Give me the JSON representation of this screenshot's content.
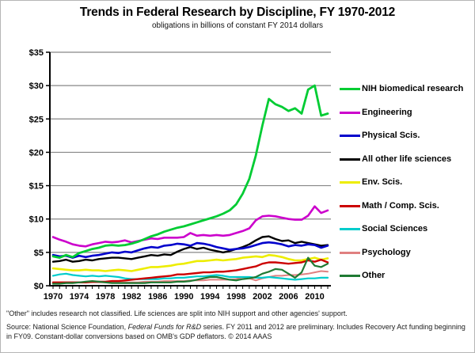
{
  "figure": {
    "title": "Trends in Federal Research by Discipline, FY 1970-2012",
    "subtitle": "obligations in billions of constant FY 2014 dollars"
  },
  "chart_data": {
    "type": "line",
    "title": "Trends in Federal Research by Discipline, FY 1970-2012",
    "subtitle": "obligations in billions of constant FY 2014 dollars",
    "xlabel": "",
    "ylabel": "",
    "grid": true,
    "legend_position": "right",
    "ylim": [
      0,
      35
    ],
    "yticks": [
      0,
      5,
      10,
      15,
      20,
      25,
      30,
      35
    ],
    "ytick_prefix": "$",
    "xticks_labeled": [
      1970,
      1974,
      1978,
      1982,
      1986,
      1990,
      1994,
      1998,
      2002,
      2006,
      2010
    ],
    "colors": {
      "grid": "#878787",
      "axis": "#000000"
    },
    "x": [
      1970,
      1971,
      1972,
      1973,
      1974,
      1975,
      1976,
      1977,
      1978,
      1979,
      1980,
      1981,
      1982,
      1983,
      1984,
      1985,
      1986,
      1987,
      1988,
      1989,
      1990,
      1991,
      1992,
      1993,
      1994,
      1995,
      1996,
      1997,
      1998,
      1999,
      2000,
      2001,
      2002,
      2003,
      2004,
      2005,
      2006,
      2007,
      2008,
      2009,
      2010,
      2011,
      2012
    ],
    "draw_order": [
      7,
      6,
      4,
      5,
      8,
      3,
      2,
      1,
      0
    ],
    "series": [
      {
        "name": "NIH biomedical research",
        "color": "#00CC33",
        "width": 2.8,
        "values": [
          4.4,
          4.2,
          4.6,
          4.3,
          4.9,
          5.2,
          5.5,
          5.7,
          6.0,
          6.1,
          6.0,
          6.1,
          6.3,
          6.6,
          7.0,
          7.4,
          7.7,
          8.1,
          8.4,
          8.7,
          8.9,
          9.2,
          9.5,
          9.8,
          10.1,
          10.4,
          10.8,
          11.3,
          12.2,
          13.8,
          16.0,
          19.5,
          24.0,
          28.0,
          27.2,
          26.8,
          26.2,
          26.6,
          25.8,
          29.4,
          30.0,
          25.5,
          25.8
        ]
      },
      {
        "name": "Engineering",
        "color": "#CC00CC",
        "width": 2.6,
        "values": [
          7.3,
          6.9,
          6.6,
          6.2,
          6.0,
          5.9,
          6.2,
          6.4,
          6.6,
          6.5,
          6.6,
          6.8,
          6.5,
          6.7,
          6.9,
          7.1,
          7.0,
          7.2,
          7.2,
          7.2,
          7.3,
          7.9,
          7.5,
          7.6,
          7.5,
          7.6,
          7.5,
          7.6,
          7.9,
          8.2,
          8.6,
          9.8,
          10.4,
          10.5,
          10.4,
          10.2,
          10.0,
          9.9,
          9.9,
          10.5,
          11.9,
          10.9,
          11.3
        ]
      },
      {
        "name": "Physical Scis.",
        "color": "#0000CC",
        "width": 2.6,
        "values": [
          4.6,
          4.4,
          4.5,
          4.2,
          4.5,
          4.3,
          4.5,
          4.6,
          4.8,
          5.0,
          4.9,
          5.1,
          5.0,
          5.3,
          5.6,
          5.8,
          5.7,
          6.0,
          6.1,
          6.3,
          6.2,
          6.0,
          6.4,
          6.3,
          6.1,
          5.8,
          5.6,
          5.4,
          5.5,
          5.6,
          5.8,
          6.1,
          6.4,
          6.5,
          6.4,
          6.2,
          5.9,
          6.1,
          6.0,
          6.2,
          6.1,
          5.7,
          6.0
        ]
      },
      {
        "name": "All other life sciences",
        "color": "#000000",
        "width": 2.4,
        "values": [
          3.6,
          3.7,
          3.9,
          3.6,
          3.7,
          3.9,
          3.8,
          4.0,
          4.1,
          4.2,
          4.2,
          4.1,
          4.0,
          4.2,
          4.4,
          4.6,
          4.5,
          4.7,
          4.6,
          5.1,
          5.5,
          5.8,
          5.5,
          5.7,
          5.4,
          5.2,
          5.0,
          5.2,
          5.5,
          5.8,
          6.2,
          6.8,
          7.3,
          7.4,
          7.0,
          6.7,
          6.8,
          6.4,
          6.6,
          6.4,
          6.2,
          6.0,
          6.1
        ]
      },
      {
        "name": "Env. Scis.",
        "color": "#EDED00",
        "width": 2.6,
        "values": [
          2.6,
          2.5,
          2.4,
          2.3,
          2.3,
          2.4,
          2.3,
          2.3,
          2.2,
          2.3,
          2.4,
          2.3,
          2.2,
          2.4,
          2.6,
          2.8,
          2.8,
          2.9,
          3.0,
          3.2,
          3.3,
          3.5,
          3.7,
          3.7,
          3.8,
          3.9,
          3.8,
          3.9,
          4.0,
          4.2,
          4.3,
          4.4,
          4.3,
          4.6,
          4.5,
          4.3,
          4.0,
          3.8,
          3.8,
          4.0,
          4.2,
          3.9,
          4.1
        ]
      },
      {
        "name": "Math / Comp. Scis.",
        "color": "#CC0000",
        "width": 2.4,
        "values": [
          0.5,
          0.5,
          0.5,
          0.5,
          0.5,
          0.5,
          0.6,
          0.6,
          0.6,
          0.7,
          0.7,
          0.8,
          0.9,
          1.0,
          1.1,
          1.2,
          1.3,
          1.4,
          1.5,
          1.7,
          1.7,
          1.8,
          1.9,
          2.0,
          2.0,
          2.1,
          2.1,
          2.2,
          2.3,
          2.5,
          2.7,
          2.9,
          3.3,
          3.5,
          3.5,
          3.4,
          3.3,
          3.4,
          3.5,
          3.8,
          3.6,
          3.9,
          3.5
        ]
      },
      {
        "name": "Social Sciences",
        "color": "#00CCCC",
        "width": 2.2,
        "values": [
          1.5,
          1.7,
          1.8,
          1.6,
          1.5,
          1.4,
          1.5,
          1.4,
          1.5,
          1.4,
          1.3,
          1.1,
          1.0,
          1.0,
          1.0,
          1.0,
          1.0,
          1.1,
          1.1,
          1.2,
          1.2,
          1.3,
          1.4,
          1.4,
          1.5,
          1.6,
          1.5,
          1.3,
          1.3,
          1.3,
          1.3,
          1.2,
          1.2,
          1.3,
          1.2,
          1.1,
          1.0,
          0.9,
          1.0,
          1.1,
          1.1,
          1.2,
          1.2
        ]
      },
      {
        "name": "Psychology",
        "color": "#E08080",
        "width": 2.0,
        "values": [
          0.5,
          0.5,
          0.5,
          0.5,
          0.5,
          0.5,
          0.5,
          0.5,
          0.5,
          0.5,
          0.5,
          0.5,
          0.5,
          0.5,
          0.6,
          0.6,
          0.6,
          0.7,
          0.7,
          0.7,
          0.7,
          0.8,
          0.8,
          0.8,
          0.9,
          0.9,
          0.9,
          0.9,
          1.0,
          1.3,
          1.1,
          0.8,
          1.1,
          1.3,
          1.5,
          1.5,
          1.6,
          1.6,
          1.7,
          1.8,
          2.0,
          2.2,
          2.1
        ]
      },
      {
        "name": "Other",
        "color": "#1F7A33",
        "width": 2.2,
        "values": [
          0.3,
          0.3,
          0.4,
          0.4,
          0.5,
          0.6,
          0.7,
          0.6,
          0.5,
          0.4,
          0.4,
          0.4,
          0.4,
          0.4,
          0.4,
          0.5,
          0.5,
          0.5,
          0.5,
          0.6,
          0.6,
          0.7,
          0.9,
          1.1,
          1.3,
          1.3,
          1.1,
          0.9,
          0.8,
          1.0,
          1.1,
          1.3,
          1.8,
          2.1,
          2.5,
          2.4,
          1.8,
          1.2,
          2.0,
          4.2,
          3.0,
          2.8,
          3.3
        ]
      }
    ]
  },
  "footnotes": {
    "note1": "\"Other\" includes research not classified. Life sciences are split into NIH support and other agencies' support.",
    "source_pre": "Source: National Science Foundation, ",
    "source_italic": "Federal Funds for R&D",
    "source_post": " series. FY 2011 and 2012 are preliminary. Includes Recovery Act funding beginning in FY09. Constant-dollar conversions based on OMB's GDP deflators. © 2014 AAAS"
  }
}
